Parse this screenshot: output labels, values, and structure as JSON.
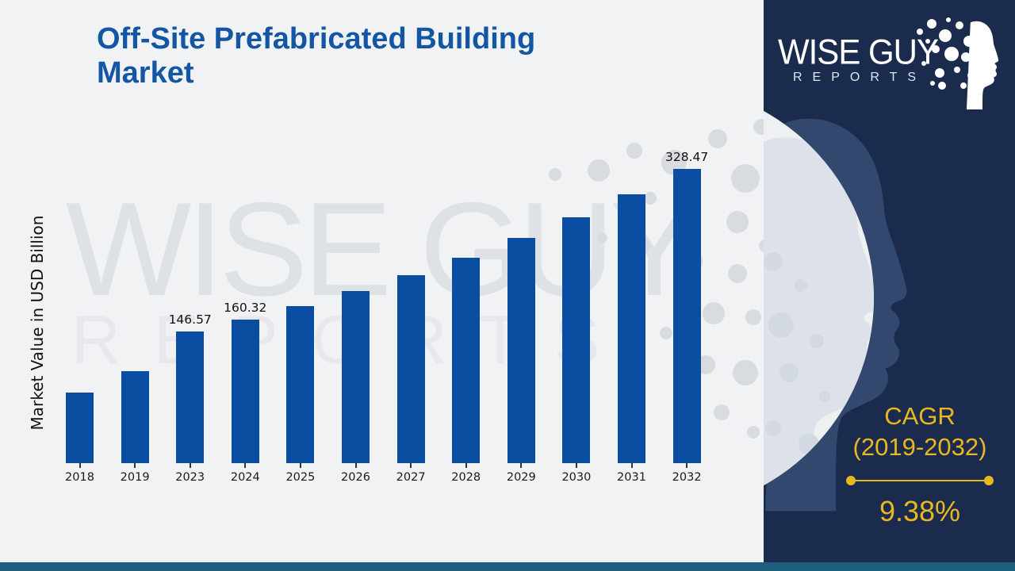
{
  "page": {
    "title": "Off-Site Prefabricated Building Market"
  },
  "chart_data": {
    "type": "bar",
    "title": "Off-Site Prefabricated Building Market",
    "xlabel": "",
    "ylabel": "Market Value in USD Billion",
    "categories": [
      "2018",
      "2019",
      "2023",
      "2024",
      "2025",
      "2026",
      "2027",
      "2028",
      "2029",
      "2030",
      "2031",
      "2032"
    ],
    "values": [
      79.0,
      102.4,
      146.57,
      160.32,
      175.36,
      191.81,
      209.8,
      229.48,
      251.01,
      274.55,
      300.3,
      328.47
    ],
    "data_labels": [
      "",
      "",
      "146.57",
      "160.32",
      "",
      "",
      "",
      "",
      "",
      "",
      "",
      "328.47"
    ],
    "units": "USD Billion",
    "bar_color": "#0b4da1",
    "ylim": [
      0,
      345
    ],
    "grid": false,
    "legend": false
  },
  "watermark": {
    "line1": "WISE GUY",
    "line2": "REPORTS"
  },
  "brand": {
    "line1": "WISE GUY",
    "line2": "REPORTS"
  },
  "cagr": {
    "heading": "CAGR",
    "period": "(2019-2032)",
    "value": "9.38%"
  },
  "colors": {
    "background": "#f1f2f3",
    "bar": "#0b4da1",
    "title_blue": "#1356a4",
    "panel_navy": "#1b2b4d",
    "gold": "#e8b81f",
    "bottom_strip": "#1d5e7c"
  }
}
